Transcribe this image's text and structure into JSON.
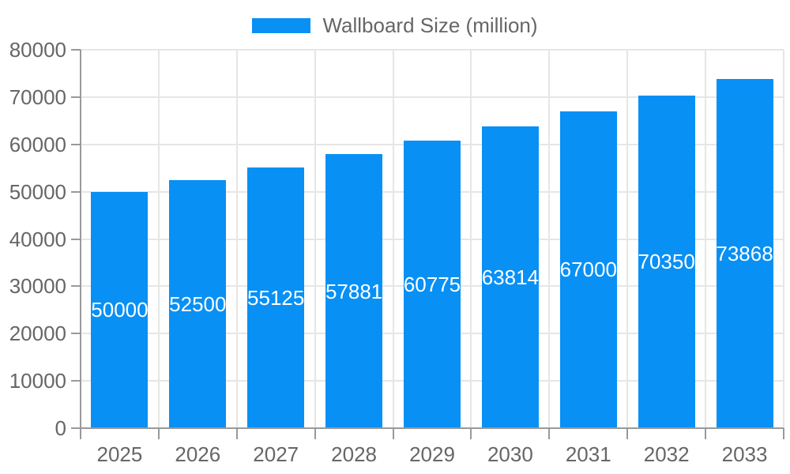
{
  "chart_data": {
    "type": "bar",
    "title": "",
    "legend": "Wallboard Size (million)",
    "legend_position": "top-center",
    "categories": [
      "2025",
      "2026",
      "2027",
      "2028",
      "2029",
      "2030",
      "2031",
      "2032",
      "2033"
    ],
    "series": [
      {
        "name": "Wallboard Size (million)",
        "values": [
          50000,
          52500,
          55125,
          57881,
          60775,
          63814,
          67000,
          70350,
          73868
        ]
      }
    ],
    "xlabel": "",
    "ylabel": "",
    "ylim": [
      0,
      80000
    ],
    "y_tick_step": 10000,
    "y_tick_labels": [
      "0",
      "10000",
      "20000",
      "30000",
      "40000",
      "50000",
      "60000",
      "70000",
      "80000"
    ],
    "grid": "on",
    "value_labels": "inside-center",
    "colors": {
      "bar": "#0890f5",
      "axis": "#999999",
      "grid": "#e6e6e6",
      "tick_text": "#666666",
      "legend_text": "#666666",
      "value_label_text": "#ffffff"
    }
  }
}
